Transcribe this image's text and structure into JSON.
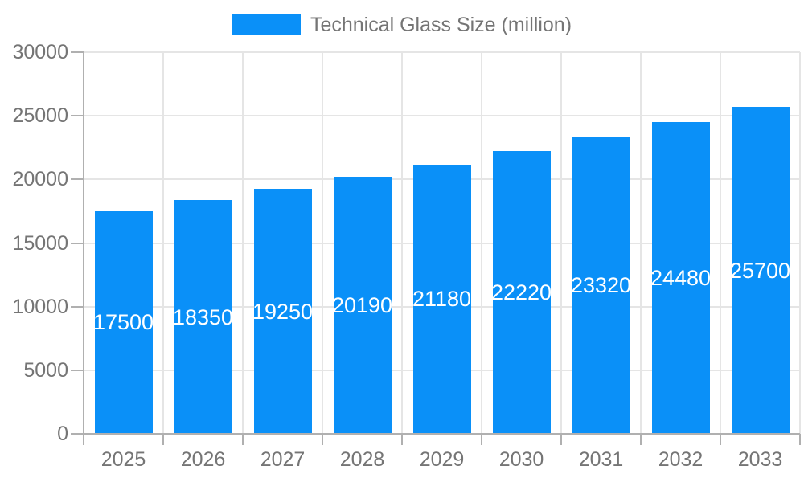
{
  "chart_data": {
    "type": "bar",
    "title": "",
    "legend_entries": [
      "Technical Glass Size (million)"
    ],
    "legend_position": "top-center",
    "categories": [
      "2025",
      "2026",
      "2027",
      "2028",
      "2029",
      "2030",
      "2031",
      "2032",
      "2033"
    ],
    "series": [
      {
        "name": "Technical Glass Size (million)",
        "values": [
          17500,
          18350,
          19250,
          20190,
          21180,
          22220,
          23320,
          24480,
          25700
        ]
      }
    ],
    "value_labels_shown": true,
    "value_label_position": "inside-center",
    "xlabel": "",
    "ylabel": "",
    "ylim": [
      0,
      30000
    ],
    "yticks": [
      0,
      5000,
      10000,
      15000,
      20000,
      25000,
      30000
    ],
    "grid": true,
    "colors": {
      "bar": "#0a90f8",
      "axis_line": "#b0b0b0",
      "gridline": "#e5e5e5",
      "tick_text": "#757575",
      "legend_text": "#757575",
      "value_label_text": "#ffffff",
      "background": "#ffffff"
    }
  },
  "legend": {
    "label": "Technical Glass Size (million)"
  }
}
